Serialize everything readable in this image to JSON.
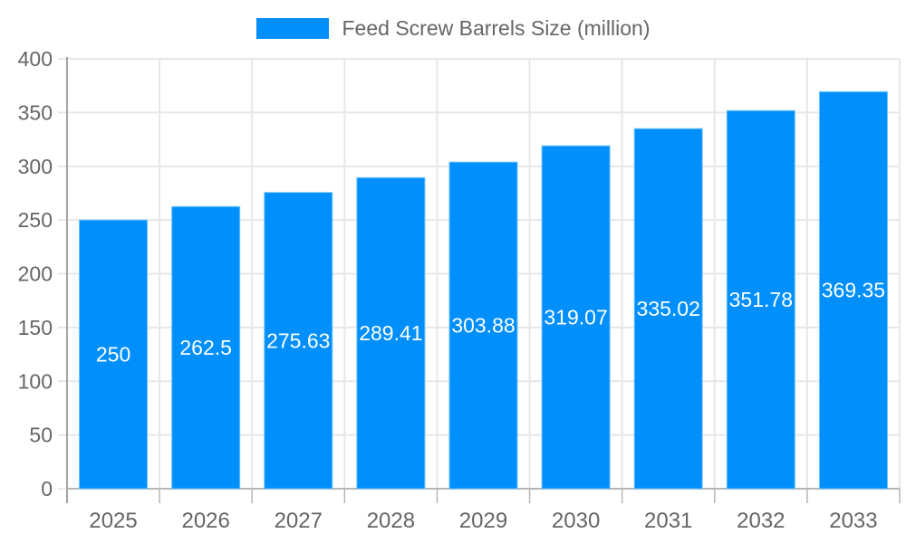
{
  "colors": {
    "bar": "#008FFB",
    "bar_edge": "#69c3fd",
    "grid": "#e7e7e7",
    "axis": "#b6b6b6",
    "y_axis": "#a4a4a4",
    "tick": "#b6b6b6",
    "axis_label": "#666666",
    "value_label": "#ffffff",
    "background": "#ffffff"
  },
  "chart_data": {
    "type": "bar",
    "title": "Feed Screw Barrels Size (million)",
    "categories": [
      "2025",
      "2026",
      "2027",
      "2028",
      "2029",
      "2030",
      "2031",
      "2032",
      "2033"
    ],
    "series": [
      {
        "name": "Feed Screw Barrels Size (million)",
        "values": [
          250,
          262.5,
          275.63,
          289.41,
          303.88,
          319.07,
          335.02,
          351.78,
          369.35
        ]
      }
    ],
    "value_labels": [
      "250",
      "262.5",
      "275.63",
      "289.41",
      "303.88",
      "319.07",
      "335.02",
      "351.78",
      "369.35"
    ],
    "xlabel": "",
    "ylabel": "",
    "ylim": [
      0,
      400
    ],
    "yticks": [
      0,
      50,
      100,
      150,
      200,
      250,
      300,
      350,
      400
    ],
    "grid": true,
    "legend_position": "top"
  }
}
